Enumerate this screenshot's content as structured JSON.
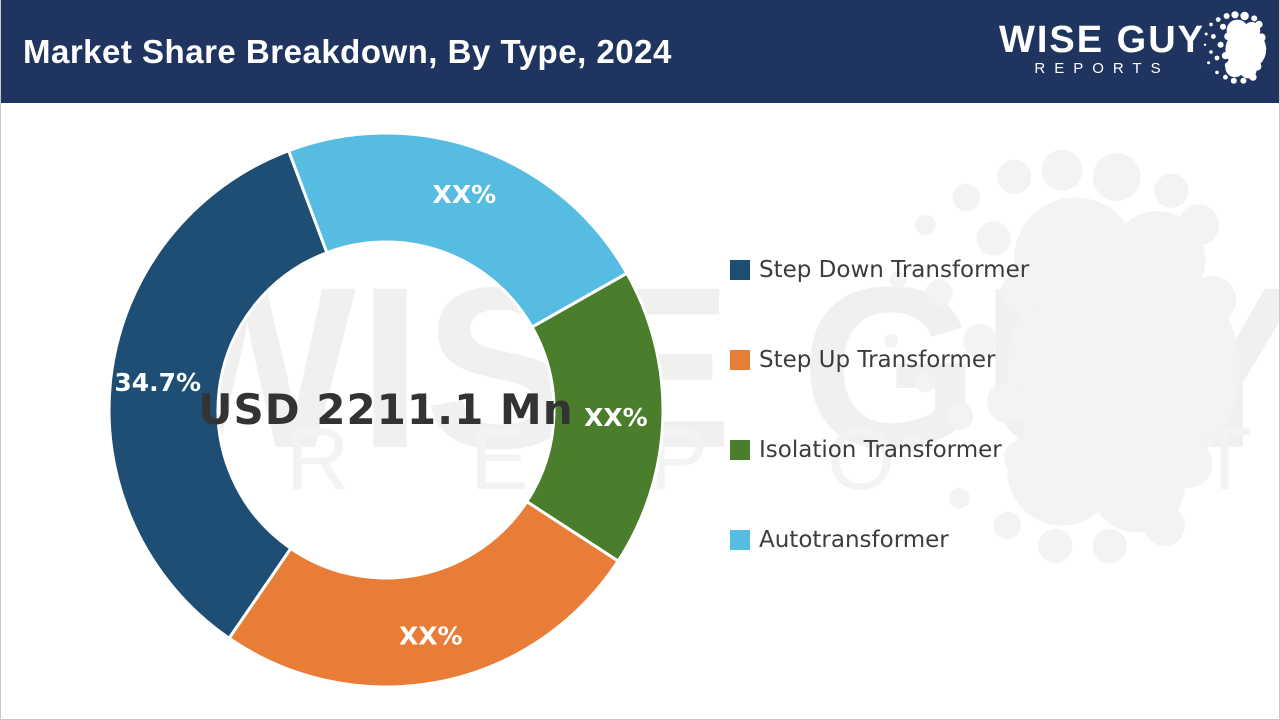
{
  "header": {
    "title": "Market Share Breakdown, By Type, 2024",
    "bg_color": "#1f355f",
    "logo": {
      "line1": "WISE GUY",
      "line2": "REPORTS"
    }
  },
  "chart_data": {
    "type": "pie",
    "donut": true,
    "title": "Market Share Breakdown, By Type, 2024",
    "center_label": "USD 2211.1 Mn",
    "start_angle_deg": 235.5,
    "outer_radius": 277,
    "inner_radius": 168,
    "label_radius": 230,
    "segments": [
      {
        "label": "Step Down Transformer",
        "value_pct": 34.7,
        "display_label": "34.7%",
        "color": "#1e4e74"
      },
      {
        "label": "Autotransformer",
        "value_pct": 22.5,
        "display_label": "XX%",
        "color": "#56bce2"
      },
      {
        "label": "Isolation Transformer",
        "value_pct": 17.4,
        "display_label": "XX%",
        "color": "#4a7d2c"
      },
      {
        "label": "Step Up Transformer",
        "value_pct": 25.4,
        "display_label": "XX%",
        "color": "#e87d38"
      }
    ]
  },
  "legend": {
    "items": [
      {
        "label": "Step Down Transformer",
        "color": "#1e4e74"
      },
      {
        "label": "Step Up Transformer",
        "color": "#e87d38"
      },
      {
        "label": "Isolation Transformer",
        "color": "#4a7d2c"
      },
      {
        "label": "Autotransformer",
        "color": "#56bce2"
      }
    ]
  },
  "watermark": {
    "line1": "WISE GUY",
    "line2": "R E P O R T S"
  }
}
